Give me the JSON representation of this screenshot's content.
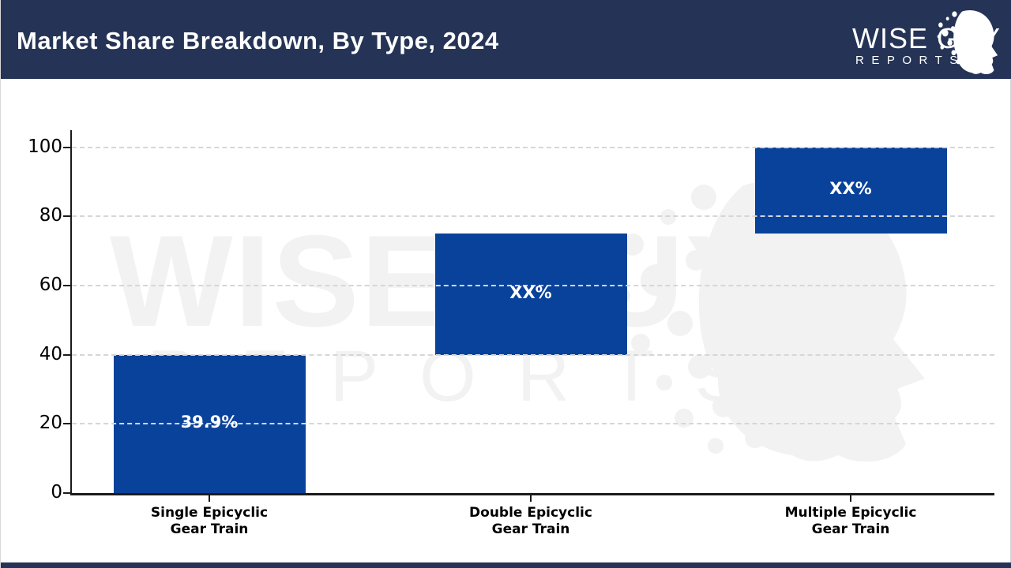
{
  "header": {
    "title": "Market Share Breakdown, By Type, 2024",
    "logo": {
      "line1": "WISE GUY",
      "line2": "REPORTS"
    },
    "bg_color": "#253456"
  },
  "watermark": {
    "line1": "WISE GUY",
    "line2": "REPORTS"
  },
  "chart_data": {
    "type": "bar",
    "variant": "waterfall",
    "title": "Market Share Breakdown, By Type, 2024",
    "categories": [
      [
        "Single Epicyclic",
        "Gear Train"
      ],
      [
        "Double Epicyclic",
        "Gear Train"
      ],
      [
        "Multiple Epicyclic",
        "Gear Train"
      ]
    ],
    "segments": [
      {
        "start": 0,
        "end": 40,
        "label": "39.9%"
      },
      {
        "start": 40,
        "end": 75,
        "label": "XX%"
      },
      {
        "start": 75,
        "end": 100,
        "label": "XX%"
      }
    ],
    "bar_labels": [
      "39.9%",
      "XX%",
      "XX%"
    ],
    "yticks": [
      0,
      20,
      40,
      60,
      80,
      100
    ],
    "ylim": [
      0,
      105
    ],
    "xlabel": "",
    "ylabel": "",
    "bar_color": "#09429b",
    "grid": "horizontal-dashed",
    "grid_color": "#d6d6d6",
    "label_color": "#ffffff"
  }
}
